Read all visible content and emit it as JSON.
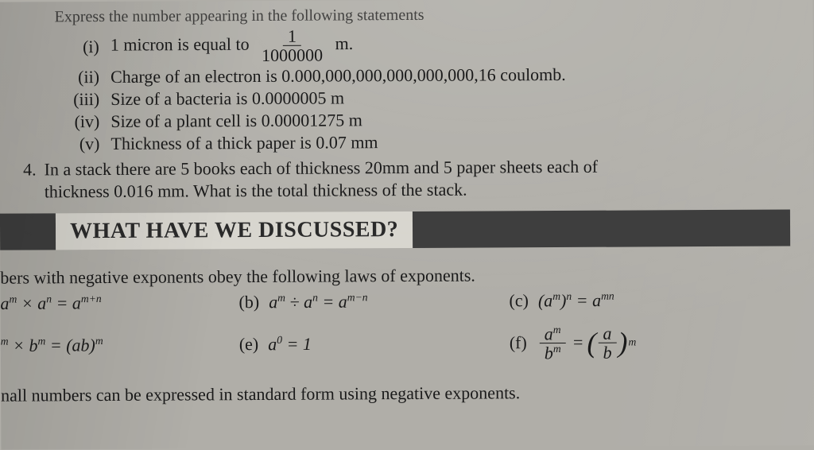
{
  "partial_top": "Express the number appearing in the following statements",
  "items": {
    "i": {
      "num": "(i)",
      "pre": "1 micron is equal to ",
      "frac_n": "1",
      "frac_d": "1000000",
      "post": " m."
    },
    "ii": {
      "num": "(ii)",
      "text": "Charge of an electron is 0.000,000,000,000,000,000,16 coulomb."
    },
    "iii": {
      "num": "(iii)",
      "text": "Size of a bacteria is 0.0000005 m"
    },
    "iv": {
      "num": "(iv)",
      "text": "Size of a plant cell is 0.00001275 m"
    },
    "v": {
      "num": "(v)",
      "text": "Thickness of a thick paper is 0.07 mm"
    }
  },
  "q4": {
    "num": "4.",
    "l1": "In a stack there are 5 books each of thickness 20mm and 5 paper sheets each of",
    "l2": "thickness 0.016 mm. What is the total thickness of the stack."
  },
  "banner": "WHAT HAVE WE DISCUSSED?",
  "intro": "bers with negative exponents obey the following laws of exponents.",
  "laws": {
    "a": {
      "expr_html": "a<span class='sup'>m</span> × a<span class='sup'>n</span> = a<span class='sup'>m+n</span>"
    },
    "b": {
      "label": "(b)",
      "expr_html": "a<span class='sup'>m</span> ÷ a<span class='sup'>n</span> = a<span class='sup'>m−n</span>"
    },
    "c": {
      "label": "(c)",
      "expr_html": "(a<span class='sup'>m</span>)<span class='sup'>n</span> = a<span class='sup'>mn</span>"
    },
    "d": {
      "expr_html": "<span class='sup'>m</span> × b<span class='sup'>m</span> = (ab)<span class='sup'>m</span>"
    },
    "e": {
      "label": "(e)",
      "expr_html": "a<span class='sup'>0</span> = 1"
    },
    "f": {
      "label": "(f)"
    }
  },
  "frac_f": {
    "an": "a",
    "am": "m",
    "bn": "b",
    "bm": "m",
    "rn": "a",
    "rd": "b",
    "rm": "m"
  },
  "final": "nall numbers can be expressed in standard form using negative exponents."
}
